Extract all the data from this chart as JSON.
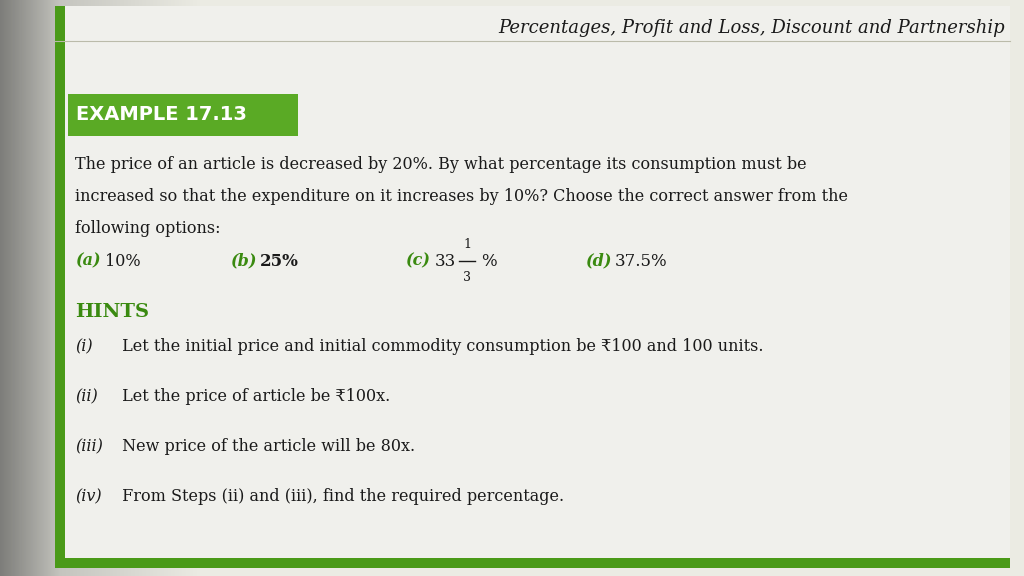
{
  "bg_gradient_left": "#b0b0a8",
  "bg_gradient_right": "#d0d0c8",
  "page_bg": "#f2f2ee",
  "title": "Percentages, Profit and Loss, Discount and Partnership",
  "title_fontsize": 12,
  "header_line_color": "#aaaaaa",
  "example_label": "EXAMPLE 17.13",
  "example_box_color": "#5aaa25",
  "example_text_color": "#ffffff",
  "question_line1": "The price of an article is decreased by 20%. By what percentage its consumption must be",
  "question_line2": "increased so that the expenditure on it increases by 10%? Choose the correct answer from the",
  "question_line3": "following options:",
  "opt_a_label": "(a)",
  "opt_a_text": "10%",
  "opt_b_label": "(b)",
  "opt_b_text": "25%",
  "opt_c_label": "(c)",
  "opt_c_num": "1",
  "opt_c_den": "3",
  "opt_c_base": "33",
  "opt_d_label": "(d)",
  "opt_d_text": "37.5%",
  "hints_label": "HINTS",
  "hints_color": "#3a8a10",
  "hint1_label": "(i)",
  "hint1_text": " Let the initial price and initial commodity consumption be ₹100 and 100 units.",
  "hint2_label": "(ii)",
  "hint2_text": " Let the price of article be ₹100x.",
  "hint3_label": "(iii)",
  "hint3_text": " New price of the article will be 80x.",
  "hint4_label": "(iv)",
  "hint4_text": " From Steps (ii) and (iii), find the required percentage.",
  "bottom_bar_color": "#4a9a18",
  "left_bar_color": "#4a9a18",
  "font_color": "#1a1a1a",
  "label_color": "#3a8a10"
}
